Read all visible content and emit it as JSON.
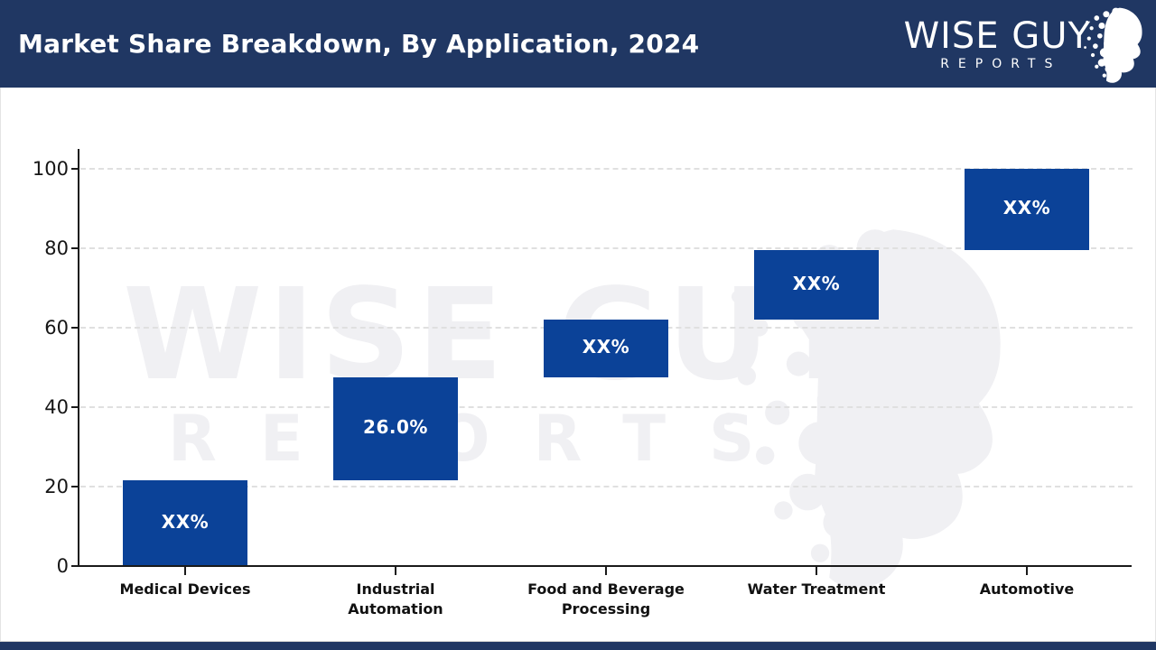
{
  "header": {
    "title": "Market Share Breakdown, By Application, 2024",
    "logo": {
      "name": "WISE GUY",
      "tagline": "REPORTS"
    }
  },
  "watermark": {
    "line1": "WISE GUY",
    "line2": "REPORTS"
  },
  "colors": {
    "header_navy": "#203763",
    "bar_blue": "#0b4298",
    "bar_label_white": "#ffffff",
    "gridline_gray": "#e0e0e0",
    "watermark_gray": "#f0f0f3"
  },
  "chart_data": {
    "type": "bar",
    "subtype": "waterfall",
    "title": "Market Share Breakdown, By Application, 2024",
    "xlabel": "",
    "ylabel": "",
    "ylim": [
      0,
      100
    ],
    "yticks": [
      0,
      20,
      40,
      60,
      80,
      100
    ],
    "grid": "horizontal-dashed",
    "legend": "none",
    "categories": [
      "Medical Devices",
      "Industrial Automation",
      "Food and Beverage Processing",
      "Water Treatment",
      "Automotive"
    ],
    "segments": [
      {
        "category": "Medical Devices",
        "tick_label": "Medical Devices",
        "start": 0,
        "end": 21.5,
        "label": "XX%"
      },
      {
        "category": "Industrial Automation",
        "tick_label": "Industrial\nAutomation",
        "start": 21.5,
        "end": 47.5,
        "label": "26.0%"
      },
      {
        "category": "Food and Beverage Processing",
        "tick_label": "Food and Beverage\nProcessing",
        "start": 47.5,
        "end": 62,
        "label": "XX%"
      },
      {
        "category": "Water Treatment",
        "tick_label": "Water Treatment",
        "start": 62,
        "end": 79.5,
        "label": "XX%"
      },
      {
        "category": "Automotive",
        "tick_label": "Automotive",
        "start": 79.5,
        "end": 100,
        "label": "XX%"
      }
    ]
  }
}
